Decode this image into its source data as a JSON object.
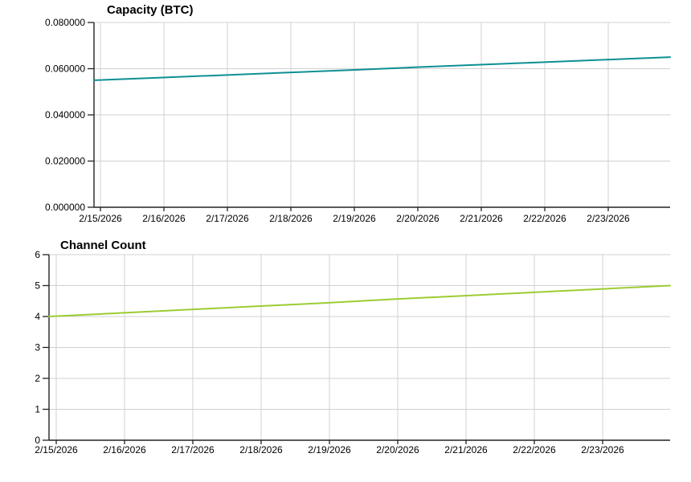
{
  "page": {
    "background": "#ffffff",
    "text_color": "#000000",
    "gridline_color": "#d0d0d0",
    "axis_color": "#222222"
  },
  "chart_data": [
    {
      "type": "line",
      "title": "Capacity (BTC)",
      "xlabel": "",
      "ylabel": "",
      "legend": false,
      "grid": true,
      "line_color": "#0e8f94",
      "ylim": [
        0,
        0.08
      ],
      "y_ticks": [
        0,
        0.02,
        0.04,
        0.06,
        0.08
      ],
      "y_tick_labels": [
        "0.000000",
        "0.020000",
        "0.040000",
        "0.060000",
        "0.080000"
      ],
      "x_tick_labels": [
        "2/15/2026",
        "2/16/2026",
        "2/17/2026",
        "2/18/2026",
        "2/19/2026",
        "2/20/2026",
        "2/21/2026",
        "2/22/2026",
        "2/23/2026"
      ],
      "x": [
        "2/15/2026",
        "2/16/2026",
        "2/17/2026",
        "2/18/2026",
        "2/19/2026",
        "2/20/2026",
        "2/21/2026",
        "2/22/2026",
        "2/23/2026",
        "2/24/2026"
      ],
      "values": [
        0.055,
        0.0561,
        0.0572,
        0.0583,
        0.0594,
        0.0606,
        0.0617,
        0.0628,
        0.0639,
        0.065
      ]
    },
    {
      "type": "line",
      "title": "Channel Count",
      "xlabel": "",
      "ylabel": "",
      "legend": false,
      "grid": true,
      "line_color": "#9ccc33",
      "ylim": [
        0,
        6
      ],
      "y_ticks": [
        0,
        1,
        2,
        3,
        4,
        5,
        6
      ],
      "y_tick_labels": [
        "0",
        "1",
        "2",
        "3",
        "4",
        "5",
        "6"
      ],
      "x_tick_labels": [
        "2/15/2026",
        "2/16/2026",
        "2/17/2026",
        "2/18/2026",
        "2/19/2026",
        "2/20/2026",
        "2/21/2026",
        "2/22/2026",
        "2/23/2026"
      ],
      "x": [
        "2/15/2026",
        "2/16/2026",
        "2/17/2026",
        "2/18/2026",
        "2/19/2026",
        "2/20/2026",
        "2/21/2026",
        "2/22/2026",
        "2/23/2026",
        "2/24/2026"
      ],
      "values": [
        4.0,
        4.11,
        4.22,
        4.33,
        4.44,
        4.56,
        4.67,
        4.78,
        4.89,
        5.0
      ]
    }
  ]
}
